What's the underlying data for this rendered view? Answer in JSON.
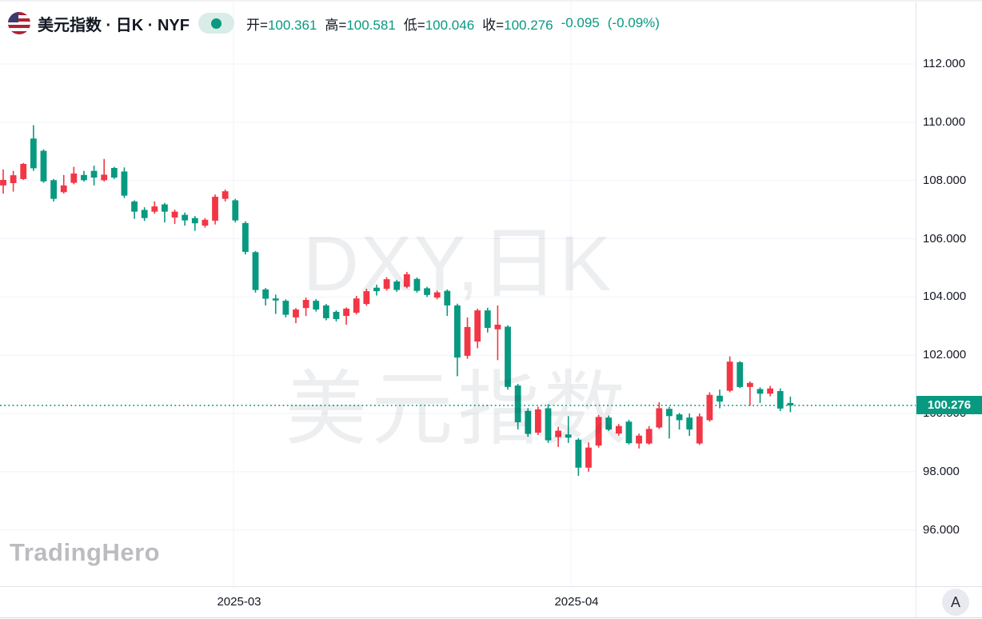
{
  "header": {
    "title": "美元指数 · 日K · NYF",
    "ohlc": [
      {
        "label": "开",
        "value": "100.361"
      },
      {
        "label": "高",
        "value": "100.581"
      },
      {
        "label": "低",
        "value": "100.046"
      },
      {
        "label": "收",
        "value": "100.276"
      }
    ],
    "change": "-0.095",
    "change_pct": "(-0.09%)"
  },
  "watermark": {
    "line1": "DXY,日K",
    "line2": "美元指数"
  },
  "brand_watermark": "TradingHero",
  "price_axis": {
    "last_price_label": "100.276"
  },
  "controls": {
    "font_size_button": "A"
  },
  "colors": {
    "up": "#f23645",
    "down": "#089981",
    "accent": "#089981",
    "text": "#131722",
    "grid": "#f0f3fa",
    "border": "#e0e3eb",
    "badge_bg": "#089981"
  },
  "chart_data": {
    "type": "candlestick",
    "title": "美元指数 (DXY) · 日K · NYF",
    "color_convention": "chinese: red = up day, green = down day",
    "ylim": [
      94.07,
      114.142
    ],
    "yticks": [
      112,
      110,
      108,
      106,
      104,
      102,
      100,
      98,
      96
    ],
    "ytick_labels": [
      "112.000",
      "110.000",
      "108.000",
      "106.000",
      "104.000",
      "102.000",
      "100.000",
      "98.000",
      "96.000"
    ],
    "last_price": 100.276,
    "x_ticks": [
      {
        "label": "2025-03",
        "x": 292
      },
      {
        "label": "2025-04",
        "x": 714
      }
    ],
    "x_start": 4,
    "x_step": 12.62,
    "candles_format": [
      "open",
      "high",
      "low",
      "close"
    ],
    "candles": [
      [
        107.83,
        108.38,
        107.55,
        108.02
      ],
      [
        107.91,
        108.33,
        107.62,
        108.18
      ],
      [
        108.05,
        108.6,
        108.02,
        108.57
      ],
      [
        109.44,
        109.9,
        108.33,
        108.42
      ],
      [
        109.02,
        109.07,
        107.92,
        107.97
      ],
      [
        108.01,
        108.05,
        107.28,
        107.37
      ],
      [
        107.6,
        108.19,
        107.55,
        107.83
      ],
      [
        107.92,
        108.47,
        107.87,
        108.24
      ],
      [
        108.19,
        108.33,
        107.96,
        108.01
      ],
      [
        108.33,
        108.51,
        107.83,
        108.1
      ],
      [
        108.01,
        108.74,
        107.96,
        108.2
      ],
      [
        108.43,
        108.47,
        108.05,
        108.1
      ],
      [
        108.31,
        108.45,
        107.4,
        107.48
      ],
      [
        107.28,
        107.32,
        106.68,
        106.93
      ],
      [
        106.99,
        107.08,
        106.61,
        106.71
      ],
      [
        106.93,
        107.28,
        106.86,
        107.11
      ],
      [
        107.18,
        107.23,
        106.56,
        106.93
      ],
      [
        106.73,
        107.0,
        106.51,
        106.93
      ],
      [
        106.82,
        106.9,
        106.45,
        106.63
      ],
      [
        106.71,
        106.78,
        106.27,
        106.53
      ],
      [
        106.45,
        106.71,
        106.38,
        106.65
      ],
      [
        106.62,
        107.52,
        106.49,
        107.44
      ],
      [
        107.37,
        107.69,
        107.28,
        107.63
      ],
      [
        107.32,
        107.37,
        106.56,
        106.63
      ],
      [
        106.54,
        106.6,
        105.46,
        105.55
      ],
      [
        105.54,
        105.58,
        104.15,
        104.24
      ],
      [
        104.26,
        104.31,
        103.71,
        103.94
      ],
      [
        103.95,
        104.08,
        103.42,
        103.88
      ],
      [
        103.87,
        103.92,
        103.3,
        103.39
      ],
      [
        103.3,
        103.62,
        103.1,
        103.57
      ],
      [
        103.62,
        103.98,
        103.35,
        103.9
      ],
      [
        103.87,
        103.93,
        103.5,
        103.57
      ],
      [
        103.71,
        103.76,
        103.2,
        103.27
      ],
      [
        103.49,
        103.54,
        103.16,
        103.24
      ],
      [
        103.35,
        103.64,
        103.05,
        103.6
      ],
      [
        103.46,
        104.04,
        103.4,
        103.95
      ],
      [
        103.76,
        104.28,
        103.7,
        104.2
      ],
      [
        104.32,
        104.42,
        104.05,
        104.2
      ],
      [
        104.28,
        104.68,
        104.22,
        104.61
      ],
      [
        104.53,
        104.58,
        104.18,
        104.24
      ],
      [
        104.35,
        104.86,
        104.3,
        104.78
      ],
      [
        104.62,
        104.67,
        104.15,
        104.21
      ],
      [
        104.3,
        104.35,
        104.0,
        104.07
      ],
      [
        103.98,
        104.22,
        103.92,
        104.16
      ],
      [
        104.21,
        104.26,
        103.35,
        103.71
      ],
      [
        103.71,
        103.77,
        101.28,
        101.92
      ],
      [
        101.98,
        103.3,
        101.88,
        102.97
      ],
      [
        102.47,
        103.6,
        102.24,
        103.54
      ],
      [
        103.54,
        103.63,
        102.78,
        102.94
      ],
      [
        102.89,
        103.71,
        101.83,
        103.05
      ],
      [
        102.98,
        103.03,
        100.82,
        100.91
      ],
      [
        100.96,
        101.02,
        99.45,
        99.7
      ],
      [
        100.09,
        100.18,
        99.2,
        99.3
      ],
      [
        99.34,
        100.23,
        99.26,
        100.14
      ],
      [
        100.18,
        100.32,
        98.99,
        99.08
      ],
      [
        99.19,
        99.54,
        98.85,
        99.41
      ],
      [
        99.28,
        99.91,
        98.99,
        99.17
      ],
      [
        99.1,
        99.15,
        97.86,
        98.14
      ],
      [
        98.14,
        99.01,
        98.0,
        98.83
      ],
      [
        98.9,
        99.95,
        98.83,
        99.88
      ],
      [
        99.86,
        99.93,
        99.4,
        99.45
      ],
      [
        99.31,
        99.64,
        99.24,
        99.57
      ],
      [
        99.72,
        99.78,
        98.94,
        98.98
      ],
      [
        98.97,
        99.31,
        98.8,
        99.24
      ],
      [
        98.97,
        99.57,
        98.93,
        99.47
      ],
      [
        99.52,
        100.39,
        99.47,
        100.18
      ],
      [
        100.16,
        100.23,
        99.14,
        99.91
      ],
      [
        99.97,
        100.02,
        99.45,
        99.77
      ],
      [
        99.86,
        100.0,
        99.23,
        99.45
      ],
      [
        98.97,
        100.0,
        98.92,
        99.9
      ],
      [
        99.77,
        100.73,
        99.72,
        100.64
      ],
      [
        100.61,
        100.82,
        100.18,
        100.41
      ],
      [
        100.78,
        101.96,
        100.73,
        101.78
      ],
      [
        101.76,
        101.8,
        100.87,
        100.91
      ],
      [
        100.91,
        101.1,
        100.27,
        101.05
      ],
      [
        100.84,
        100.9,
        100.36,
        100.68
      ],
      [
        100.68,
        100.95,
        100.59,
        100.86
      ],
      [
        100.77,
        100.86,
        100.08,
        100.17
      ],
      [
        100.361,
        100.581,
        100.046,
        100.276
      ]
    ]
  }
}
